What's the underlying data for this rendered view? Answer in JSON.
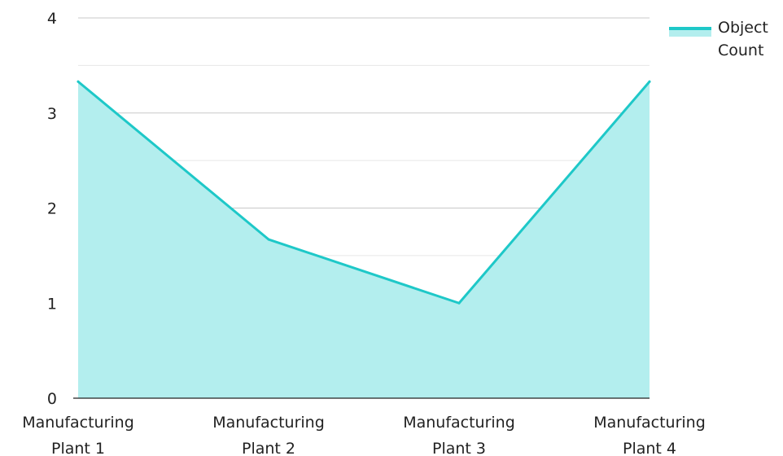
{
  "chart_data": {
    "type": "area",
    "title": "",
    "xlabel": "",
    "ylabel": "",
    "categories": [
      [
        "Manufacturing",
        "Plant 1"
      ],
      [
        "Manufacturing",
        "Plant 2"
      ],
      [
        "Manufacturing",
        "Plant 3"
      ],
      [
        "Manufacturing",
        "Plant 4"
      ]
    ],
    "series": [
      {
        "name": [
          "Object",
          "Count"
        ],
        "values": [
          3.33,
          1.67,
          1,
          3.33
        ]
      }
    ],
    "ylim": [
      0,
      4
    ],
    "yticks": [
      0,
      1,
      2,
      3,
      4
    ],
    "grid": true,
    "legend_position": "top-right",
    "colors": {
      "line": "#1ec8c8",
      "fill": "#b3eeee",
      "grid_major": "#c8c8c8",
      "grid_minor": "#e6e6e6",
      "axis": "#222222"
    }
  }
}
